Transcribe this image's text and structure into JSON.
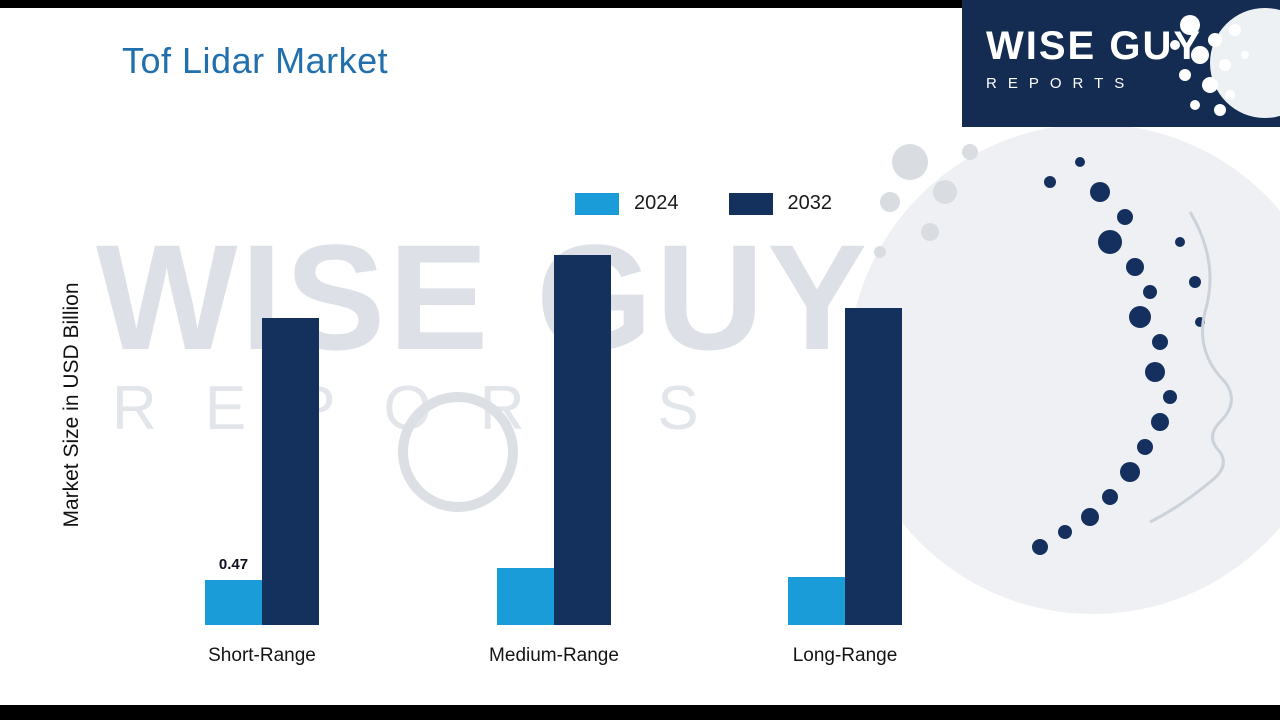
{
  "page": {
    "title": "Tof Lidar Market"
  },
  "logo": {
    "line1": "WISE GUY",
    "line2": "REPORTS"
  },
  "watermark": {
    "line1": "WISE GUY",
    "line2": "REPORTS"
  },
  "colors": {
    "title_blue": "#2170ad",
    "series_2024": "#199cd8",
    "series_2032": "#14305c",
    "logo_background": "#142b52",
    "top_bottom_bars": "#000000"
  },
  "chart_data": {
    "type": "bar",
    "categories": [
      "Short-Range",
      "Medium-Range",
      "Long-Range"
    ],
    "series": [
      {
        "name": "2024",
        "color": "#199cd8",
        "values": [
          0.47,
          0.59,
          0.5
        ]
      },
      {
        "name": "2032",
        "color": "#14305c",
        "values": [
          3.2,
          3.85,
          3.3
        ]
      }
    ],
    "title": "Tof Lidar Market",
    "xlabel": "",
    "ylabel": "Market Size in USD Billion",
    "ylim": [
      0,
      4
    ],
    "grid": false,
    "legend_position": "top",
    "data_labels": [
      {
        "series": "2024",
        "category": "Short-Range",
        "text": "0.47"
      }
    ]
  }
}
